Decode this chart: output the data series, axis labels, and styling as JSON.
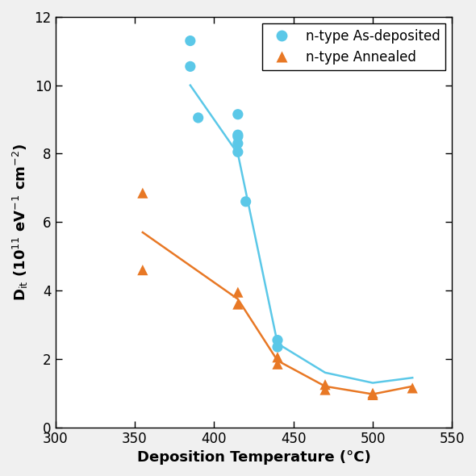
{
  "xlabel": "Deposition Temperature (°C)",
  "xlim": [
    300,
    550
  ],
  "ylim": [
    0,
    12
  ],
  "xticks": [
    300,
    350,
    400,
    450,
    500,
    550
  ],
  "yticks": [
    0,
    2,
    4,
    6,
    8,
    10,
    12
  ],
  "n_asdeposited_scatter_x": [
    385,
    385,
    390,
    415,
    415,
    415,
    415,
    415,
    420,
    440,
    440
  ],
  "n_asdeposited_scatter_y": [
    11.3,
    10.55,
    9.05,
    8.3,
    8.5,
    8.55,
    8.05,
    9.15,
    6.6,
    2.55,
    2.35
  ],
  "n_asdeposited_line_x": [
    385,
    415,
    440,
    470,
    500,
    525
  ],
  "n_asdeposited_line_y": [
    10.0,
    8.0,
    2.45,
    1.6,
    1.3,
    1.45
  ],
  "n_annealed_scatter_x": [
    355,
    355,
    415,
    415,
    440,
    440,
    470,
    470,
    500,
    500,
    525
  ],
  "n_annealed_scatter_y": [
    6.85,
    4.6,
    3.95,
    3.6,
    2.05,
    1.85,
    1.25,
    1.1,
    1.0,
    0.95,
    1.15
  ],
  "n_annealed_line_x": [
    355,
    415,
    440,
    470,
    500,
    525
  ],
  "n_annealed_line_y": [
    5.7,
    3.75,
    1.95,
    1.2,
    0.97,
    1.2
  ],
  "cyan_color": "#5BC8E8",
  "orange_color": "#E87825",
  "marker_size_scatter": 90,
  "marker_size_legend": 10,
  "line_width": 1.8,
  "legend_label_asdeposited": "n-type As-deposited",
  "legend_label_annealed": "n-type Annealed",
  "font_size_label": 13,
  "font_size_tick": 12,
  "font_size_legend": 12,
  "figure_facecolor": "#f0f0f0",
  "axes_facecolor": "#ffffff"
}
